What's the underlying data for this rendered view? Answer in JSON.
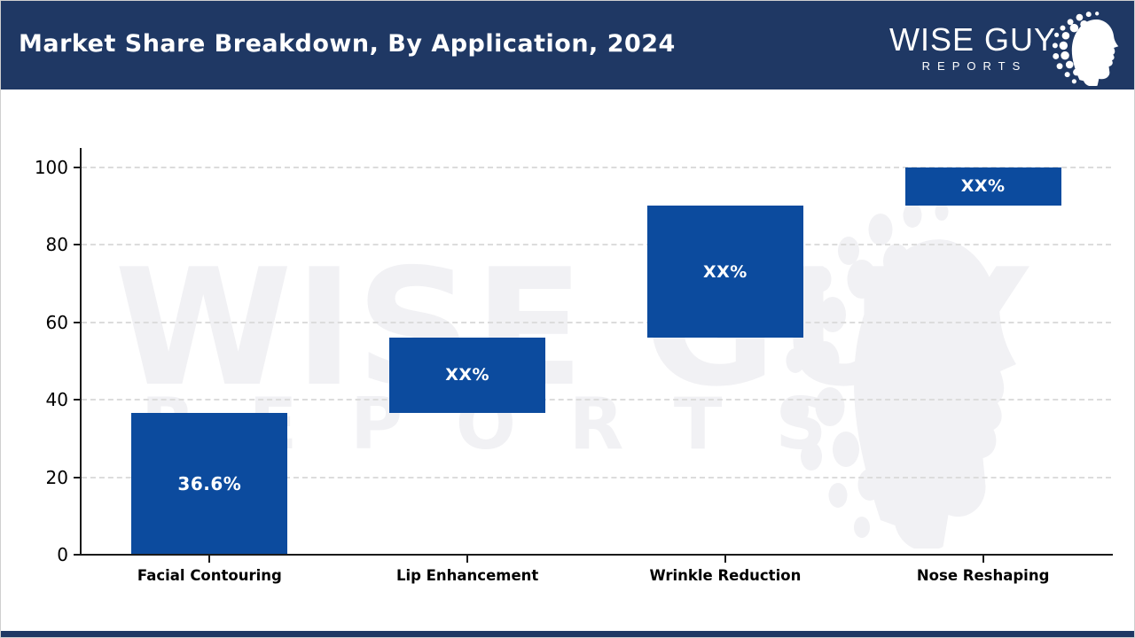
{
  "header": {
    "title": "Market Share Breakdown, By Application, 2024",
    "bg_color": "#1F3864",
    "text_color": "#FFFFFF",
    "brand": {
      "line1": "WISE GUY",
      "line2": "REPORTS"
    }
  },
  "watermark": {
    "line1": "WISE GUY",
    "line2": "REPORTS"
  },
  "chart_data": {
    "type": "bar",
    "subtype": "waterfall",
    "title": "Market Share Breakdown, By Application, 2024",
    "categories": [
      "Facial Contouring",
      "Lip Enhancement",
      "Wrinkle Reduction",
      "Nose Reshaping"
    ],
    "segments": [
      {
        "category": "Facial Contouring",
        "start": 0,
        "end": 36.6,
        "label": "36.6%"
      },
      {
        "category": "Lip Enhancement",
        "start": 36.6,
        "end": 56,
        "label": "XX%"
      },
      {
        "category": "Wrinkle Reduction",
        "start": 56,
        "end": 90,
        "label": "XX%"
      },
      {
        "category": "Nose Reshaping",
        "start": 90,
        "end": 100,
        "label": "XX%"
      }
    ],
    "yticks": [
      0,
      20,
      40,
      60,
      80,
      100
    ],
    "ylim": [
      0,
      105
    ],
    "grid": true,
    "legend": false,
    "bar_color": "#0C4B9E",
    "bar_label_color": "#FFFFFF",
    "gridline_color": "#DCDCDC",
    "axis_color": "#1A1A1A"
  }
}
